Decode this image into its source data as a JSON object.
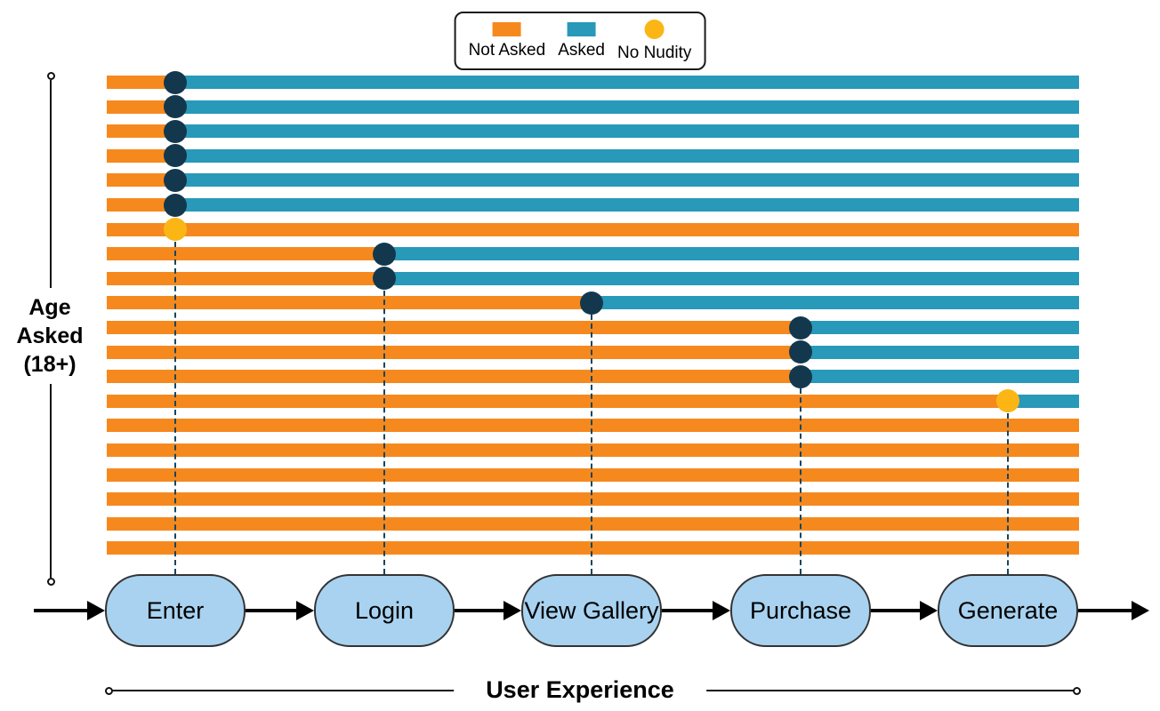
{
  "chart_data": {
    "type": "bar",
    "title": "",
    "xlabel": "User Experience",
    "ylabel": "Age Asked (18+)",
    "ylabel_lines": [
      "Age",
      "Asked",
      "(18+)"
    ],
    "stages": [
      "Enter",
      "Login",
      "View Gallery",
      "Purchase",
      "Generate"
    ],
    "legend": [
      {
        "label": "Not Asked",
        "color": "#F6891E",
        "shape": "square"
      },
      {
        "label": "Asked",
        "color": "#2899B8",
        "shape": "square"
      },
      {
        "label": "No Nudity",
        "color": "#FBB615",
        "shape": "circle"
      }
    ],
    "legend_position": "top-center",
    "grid": false,
    "rows": [
      {
        "stage": "Enter",
        "marker": "asked",
        "after": "asked"
      },
      {
        "stage": "Enter",
        "marker": "asked",
        "after": "asked"
      },
      {
        "stage": "Enter",
        "marker": "asked",
        "after": "asked"
      },
      {
        "stage": "Enter",
        "marker": "asked",
        "after": "asked"
      },
      {
        "stage": "Enter",
        "marker": "asked",
        "after": "asked"
      },
      {
        "stage": "Enter",
        "marker": "asked",
        "after": "asked"
      },
      {
        "stage": "Enter",
        "marker": "no_nudity",
        "after": "not_asked"
      },
      {
        "stage": "Login",
        "marker": "asked",
        "after": "asked"
      },
      {
        "stage": "Login",
        "marker": "asked",
        "after": "asked"
      },
      {
        "stage": "View Gallery",
        "marker": "asked",
        "after": "asked"
      },
      {
        "stage": "Purchase",
        "marker": "asked",
        "after": "asked"
      },
      {
        "stage": "Purchase",
        "marker": "asked",
        "after": "asked"
      },
      {
        "stage": "Purchase",
        "marker": "asked",
        "after": "asked"
      },
      {
        "stage": "Generate",
        "marker": "no_nudity",
        "after": "asked"
      },
      {
        "stage": null,
        "marker": "none",
        "after": "not_asked"
      },
      {
        "stage": null,
        "marker": "none",
        "after": "not_asked"
      },
      {
        "stage": null,
        "marker": "none",
        "after": "not_asked"
      },
      {
        "stage": null,
        "marker": "none",
        "after": "not_asked"
      },
      {
        "stage": null,
        "marker": "none",
        "after": "not_asked"
      },
      {
        "stage": null,
        "marker": "none",
        "after": "not_asked"
      }
    ],
    "colors": {
      "not_asked": "#F6891E",
      "asked": "#2899B8",
      "marker_asked": "#13384E",
      "marker_no_nudity": "#FBB615",
      "stage_fill": "#A8D2F0",
      "stage_border": "#333333",
      "dash_line": "#17455e",
      "axis": "#111111",
      "arrow": "#000000"
    }
  }
}
